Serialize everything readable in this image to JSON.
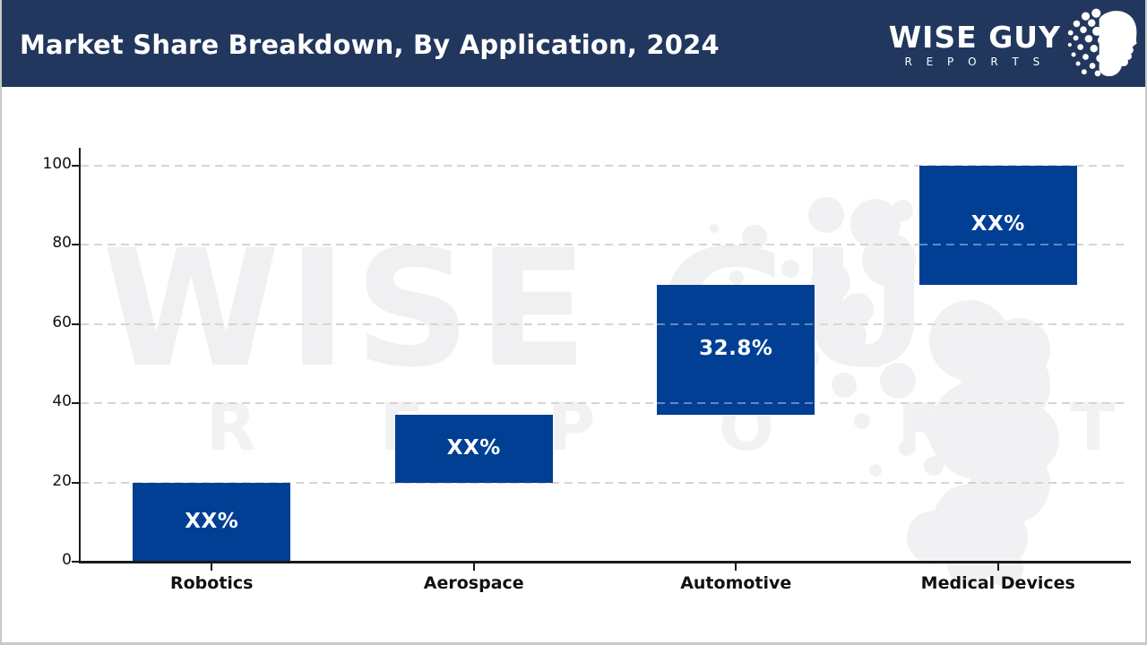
{
  "header": {
    "title": "Market Share Breakdown, By Application, 2024",
    "logo": {
      "line1": "WISE GUY",
      "line2": "R E P O R T S"
    }
  },
  "watermark": {
    "line1": "WISE GU",
    "line2": "R E P O R T S"
  },
  "colors": {
    "header_bg": "#22375e",
    "bar": "#003f94",
    "grid": "#d5d5d5",
    "axis": "#1a1a1a",
    "bar_label_text": "#ffffff",
    "watermark": "#f0f0f2",
    "page_border": "#c9c9c9"
  },
  "chart_data": {
    "type": "bar",
    "subtype": "floating-waterfall",
    "title": "Market Share Breakdown, By Application, 2024",
    "categories": [
      "Robotics",
      "Aerospace",
      "Automotive",
      "Medical Devices"
    ],
    "segments": [
      {
        "category": "Robotics",
        "start": 0,
        "end": 20,
        "label": "XX%"
      },
      {
        "category": "Aerospace",
        "start": 20,
        "end": 37.2,
        "label": "XX%"
      },
      {
        "category": "Automotive",
        "start": 37.2,
        "end": 70,
        "label": "32.8%"
      },
      {
        "category": "Medical Devices",
        "start": 70,
        "end": 100,
        "label": "XX%"
      }
    ],
    "yticks": [
      0,
      20,
      40,
      60,
      80,
      100
    ],
    "ylim": [
      0,
      104.5
    ],
    "xlabel": "",
    "ylabel": "",
    "grid": "horizontal-dashed",
    "legend": false,
    "watermark_text": "WISE GUY REPORTS"
  }
}
